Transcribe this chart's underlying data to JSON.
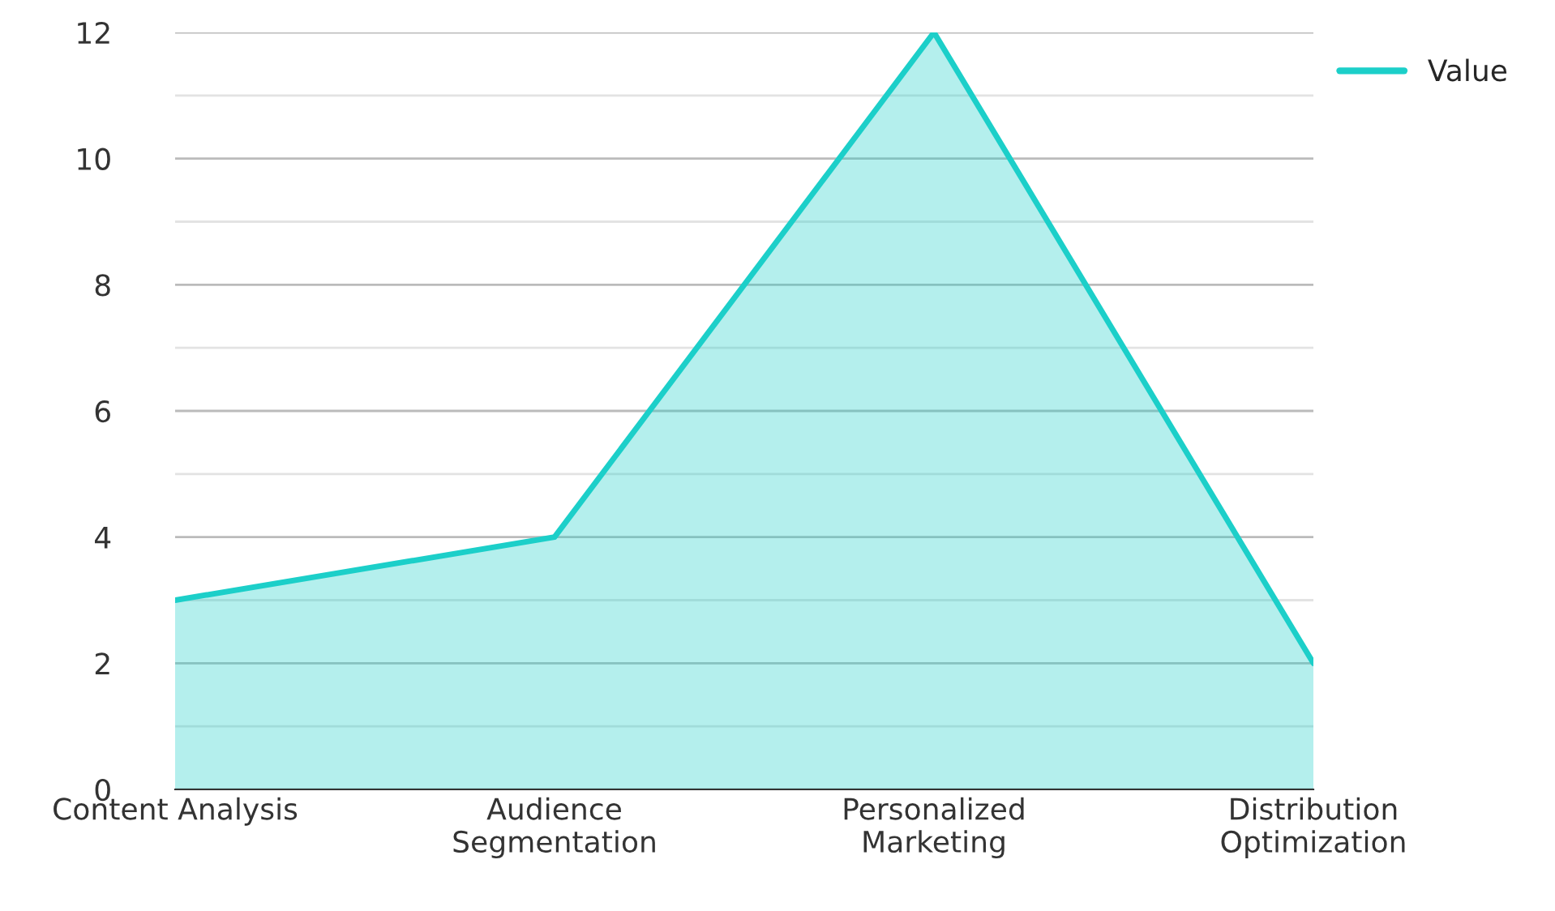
{
  "chart_data": {
    "type": "area",
    "categories": [
      "Content Analysis",
      "Audience Segmentation",
      "Personalized Marketing",
      "Distribution Optimization"
    ],
    "series": [
      {
        "name": "Value",
        "color": "#1ccfc9",
        "values": [
          3,
          4,
          12,
          2
        ]
      }
    ],
    "ylim": [
      0,
      12
    ],
    "yticks": [
      0,
      2,
      4,
      6,
      8,
      10,
      12
    ],
    "grid": "y",
    "legend": "top right"
  }
}
